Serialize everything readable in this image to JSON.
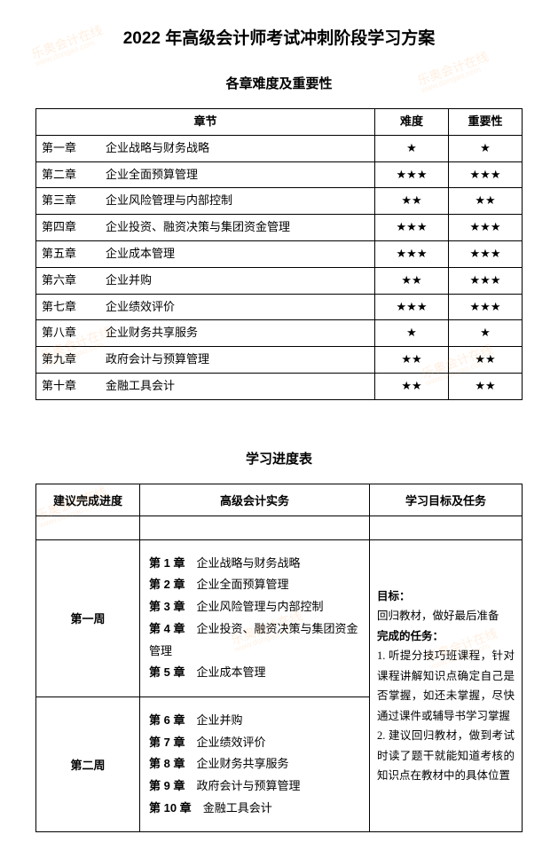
{
  "title": "2022 年高级会计师考试冲刺阶段学习方案",
  "section1_title": "各章难度及重要性",
  "section2_title": "学习进度表",
  "t1": {
    "headers": [
      "章节",
      "难度",
      "重要性"
    ],
    "rows": [
      {
        "no": "第一章",
        "name": "企业战略与财务战略",
        "diff": "★",
        "imp": "★"
      },
      {
        "no": "第二章",
        "name": "企业全面预算管理",
        "diff": "★★★",
        "imp": "★★★"
      },
      {
        "no": "第三章",
        "name": "企业风险管理与内部控制",
        "diff": "★★",
        "imp": "★★"
      },
      {
        "no": "第四章",
        "name": "企业投资、融资决策与集团资金管理",
        "diff": "★★★",
        "imp": "★★★"
      },
      {
        "no": "第五章",
        "name": "企业成本管理",
        "diff": "★★★",
        "imp": "★★★"
      },
      {
        "no": "第六章",
        "name": "企业并购",
        "diff": "★★",
        "imp": "★★★"
      },
      {
        "no": "第七章",
        "name": "企业绩效评价",
        "diff": "★★★",
        "imp": "★★★"
      },
      {
        "no": "第八章",
        "name": "企业财务共享服务",
        "diff": "★",
        "imp": "★"
      },
      {
        "no": "第九章",
        "name": "政府会计与预算管理",
        "diff": "★★",
        "imp": "★★"
      },
      {
        "no": "第十章",
        "name": "金融工具会计",
        "diff": "★★",
        "imp": "★★"
      }
    ]
  },
  "t2": {
    "headers": [
      "建议完成进度",
      "高级会计实务",
      "学习目标及任务"
    ],
    "weeks": [
      {
        "label": "第一周",
        "chapters": [
          {
            "b": "第 1 章",
            "t": "企业战略与财务战略"
          },
          {
            "b": "第 2 章",
            "t": "企业全面预算管理"
          },
          {
            "b": "第 3 章",
            "t": "企业风险管理与内部控制"
          },
          {
            "b": "第 4 章",
            "t": "企业投资、融资决策与集团资金管理"
          },
          {
            "b": "第 5 章",
            "t": "企业成本管理"
          }
        ]
      },
      {
        "label": "第二周",
        "chapters": [
          {
            "b": "第 6 章",
            "t": "企业并购"
          },
          {
            "b": "第 7 章",
            "t": "企业绩效评价"
          },
          {
            "b": "第 8 章",
            "t": "企业财务共享服务"
          },
          {
            "b": "第 9 章",
            "t": "政府会计与预算管理"
          },
          {
            "b": "第 10 章",
            "t": "金融工具会计"
          }
        ]
      }
    ],
    "goal": {
      "h1": "目标：",
      "p1": "回归教材，做好最后准备",
      "h2": "完成的任务：",
      "p2": "1. 听提分技巧班课程，针对课程讲解知识点确定自己是否掌握，如还未掌握，尽快通过课件或辅导书学习掌握",
      "p3": "2. 建议回归教材，做到考试时读了题干就能知道考核的知识点在教材中的具体位置"
    }
  }
}
